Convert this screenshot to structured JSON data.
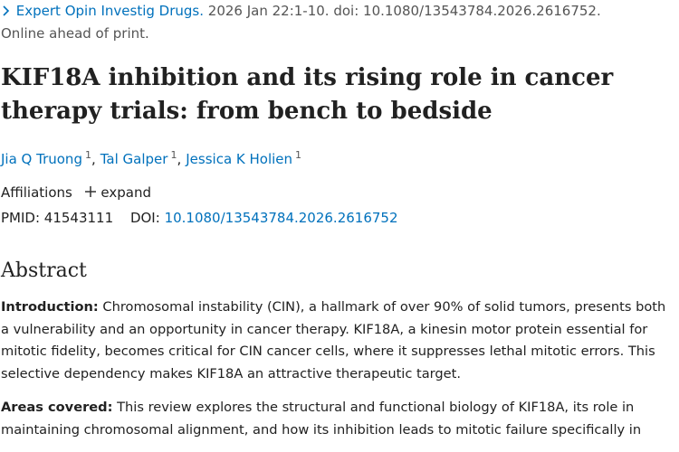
{
  "citation": {
    "journal": "Expert Opin Investig Drugs.",
    "details": "2026 Jan 22:1-10. doi: 10.1080/13543784.2026.2616752.",
    "status": "Online ahead of print."
  },
  "title": "KIF18A inhibition and its rising role in cancer therapy trials: from bench to bedside",
  "authors": [
    {
      "name": "Jia Q Truong",
      "affiliation": "1"
    },
    {
      "name": "Tal Galper",
      "affiliation": "1"
    },
    {
      "name": "Jessica K Holien",
      "affiliation": "1"
    }
  ],
  "affiliations": {
    "label": "Affiliations",
    "toggle": "expand"
  },
  "identifiers": {
    "pmid_label": "PMID:",
    "pmid": "41543111",
    "doi_label": "DOI:",
    "doi": "10.1080/13543784.2026.2616752"
  },
  "abstract": {
    "heading": "Abstract",
    "sections": [
      {
        "label": "Introduction:",
        "text": "Chromosomal instability (CIN), a hallmark of over 90% of solid tumors, presents both a vulnerability and an opportunity in cancer therapy. KIF18A, a kinesin motor protein essential for mitotic fidelity, becomes critical for CIN cancer cells, where it suppresses lethal mitotic errors. This selective dependency makes KIF18A an attractive therapeutic target."
      },
      {
        "label": "Areas covered:",
        "text": "This review explores the structural and functional biology of KIF18A, its role in maintaining chromosomal alignment, and how its inhibition leads to mitotic failure specifically in"
      }
    ]
  }
}
